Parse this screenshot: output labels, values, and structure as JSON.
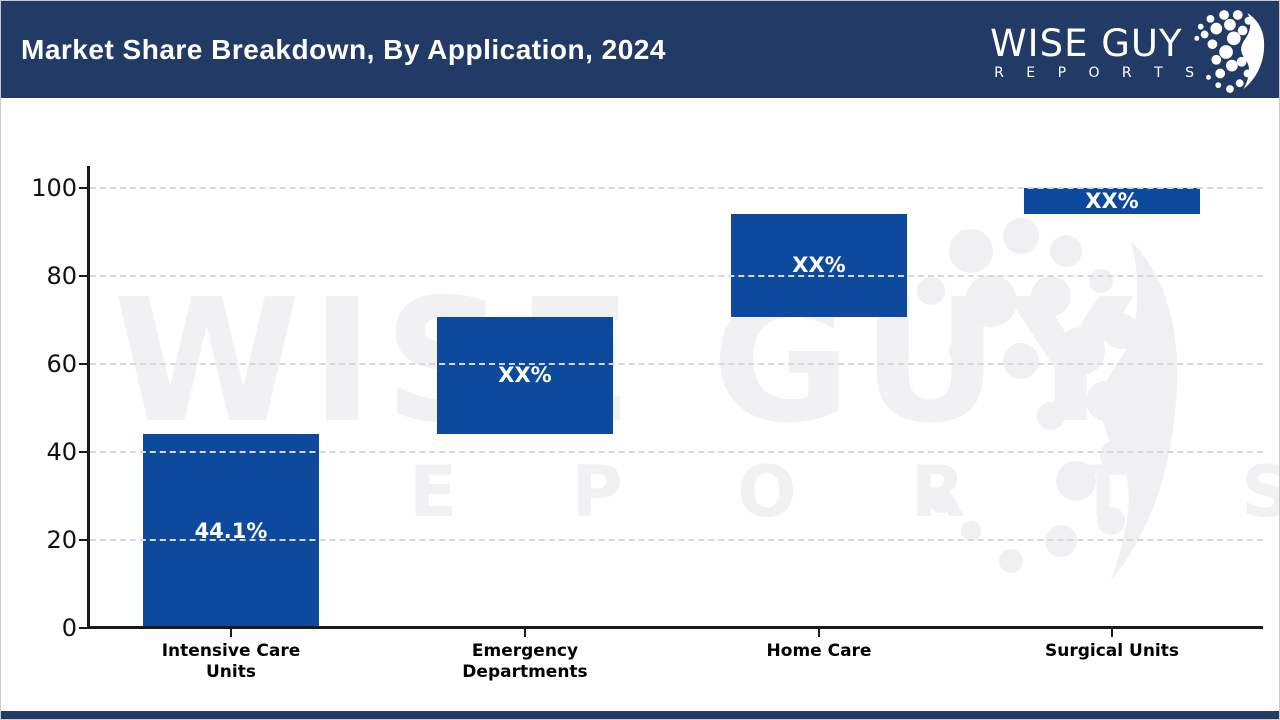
{
  "header": {
    "title": "Market Share Breakdown, By Application, 2024",
    "logo": {
      "line1": "WISE GUY",
      "line2": "R E P O R T S"
    }
  },
  "watermark": {
    "line1": "WISE GUY",
    "line2": "R E P O R T S"
  },
  "footer": {},
  "colors": {
    "header_bg": "#213a66",
    "footer_bg": "#213a66",
    "bar": "#0d4a9e",
    "bar_label_text": "#ffffff",
    "watermark": "#f1f1f3",
    "gridline": "#d8d8d8",
    "axis": "#1a1a1a",
    "title_text": "#ffffff",
    "canvas_border": "#c9c9c9"
  },
  "chart_data": {
    "type": "bar",
    "subtype": "waterfall",
    "title": "Market Share Breakdown, By Application, 2024",
    "categories": [
      "Intensive Care\nUnits",
      "Emergency\nDepartments",
      "Home Care",
      "Surgical Units"
    ],
    "bars": [
      {
        "category": "Intensive Care Units",
        "start": 0,
        "end": 44.1,
        "label": "44.1%"
      },
      {
        "category": "Emergency Departments",
        "start": 44.1,
        "end": 70.7,
        "label": "XX%"
      },
      {
        "category": "Home Care",
        "start": 70.7,
        "end": 94.1,
        "label": "XX%"
      },
      {
        "category": "Surgical Units",
        "start": 94.1,
        "end": 100,
        "label": "XX%"
      }
    ],
    "xlabel": "",
    "ylabel": "",
    "ylim": [
      0,
      100
    ],
    "yticks": [
      0,
      20,
      40,
      60,
      80,
      100
    ],
    "grid": "horizontal-dashed",
    "legend": "none",
    "value_unit": "%"
  }
}
